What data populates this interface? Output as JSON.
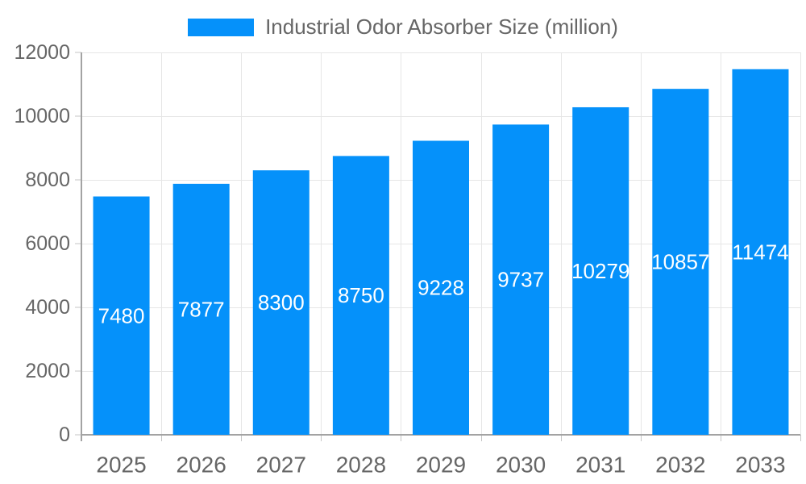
{
  "legend": {
    "label": "Industrial Odor Absorber Size (million)"
  },
  "colors": {
    "bar": "#0591FA",
    "grid": "#e6e6e6",
    "axis": "#a3a3a3",
    "tick": "#c6c6c6",
    "tick_text": "#666666",
    "value_text": "#ffffff",
    "background": "#ffffff"
  },
  "chart_data": {
    "type": "bar",
    "title": "Industrial Odor Absorber Size (million)",
    "categories": [
      "2025",
      "2026",
      "2027",
      "2028",
      "2029",
      "2030",
      "2031",
      "2032",
      "2033"
    ],
    "values": [
      7480,
      7877,
      8300,
      8750,
      9228,
      9737,
      10279,
      10857,
      11474
    ],
    "series_name": "Industrial Odor Absorber Size (million)",
    "xlabel": "",
    "ylabel": "",
    "ylim": [
      0,
      12000
    ],
    "ytick_step": 2000,
    "yticks": [
      0,
      2000,
      4000,
      6000,
      8000,
      10000,
      12000
    ],
    "grid": true,
    "legend_position": "top-center",
    "value_labels": "inside-center"
  }
}
